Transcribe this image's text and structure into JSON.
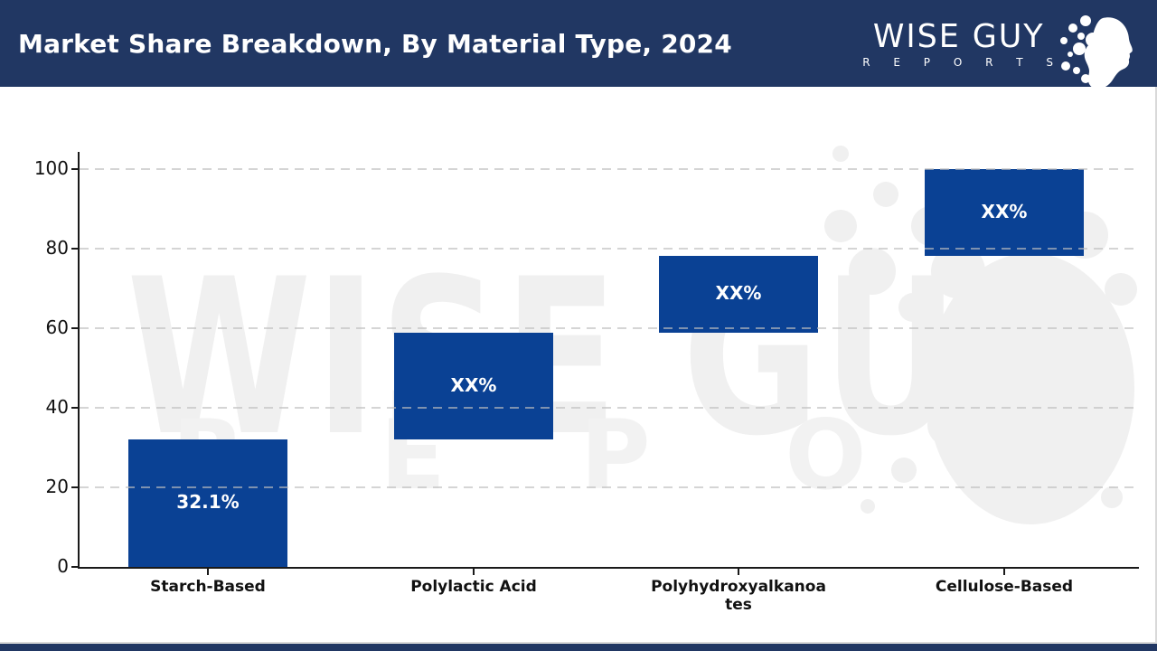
{
  "header": {
    "title": "Market Share Breakdown, By Material Type, 2024",
    "logo": {
      "line1": "WISE GUY",
      "line2": "R E P O R T S",
      "face_icon": "wiseguy-face-icon"
    }
  },
  "watermark": {
    "line1": "WISE GUY",
    "line2": "R E P O R T S"
  },
  "colors": {
    "header_bg": "#213763",
    "footer_bg": "#213763",
    "bar": "#0a4194",
    "bar_label": "#ffffff",
    "axis": "#1a1a1a",
    "grid": "#d9d9d9",
    "watermark": "#efefef"
  },
  "chart_data": {
    "type": "bar",
    "subtype": "waterfall-cumulative",
    "title": "Market Share Breakdown, By Material Type, 2024",
    "categories": [
      "Starch-Based",
      "Polylactic Acid",
      "Polyhydroxyalkanoates",
      "Cellulose-Based"
    ],
    "bars": [
      {
        "category": "Starch-Based",
        "display": "Starch-Based",
        "start": 0,
        "end": 32.1,
        "segment_value": 32.1,
        "label": "32.1%"
      },
      {
        "category": "Polylactic Acid",
        "display": "Polylactic Acid",
        "start": 32.1,
        "end": 58.9,
        "segment_value": 26.8,
        "label": "XX%"
      },
      {
        "category": "Polyhydroxyalkanoates",
        "display": "Polyhydroxyalkanoa\ntes",
        "start": 58.9,
        "end": 78.2,
        "segment_value": 19.3,
        "label": "XX%"
      },
      {
        "category": "Cellulose-Based",
        "display": "Cellulose-Based",
        "start": 78.2,
        "end": 100,
        "segment_value": 21.8,
        "label": "XX%"
      }
    ],
    "xlabel": "",
    "ylabel": "",
    "ylim": [
      0,
      100
    ],
    "yticks": [
      0,
      20,
      40,
      60,
      80,
      100
    ],
    "grid": "dashed-horizontal-over-bars",
    "legend": "none"
  }
}
